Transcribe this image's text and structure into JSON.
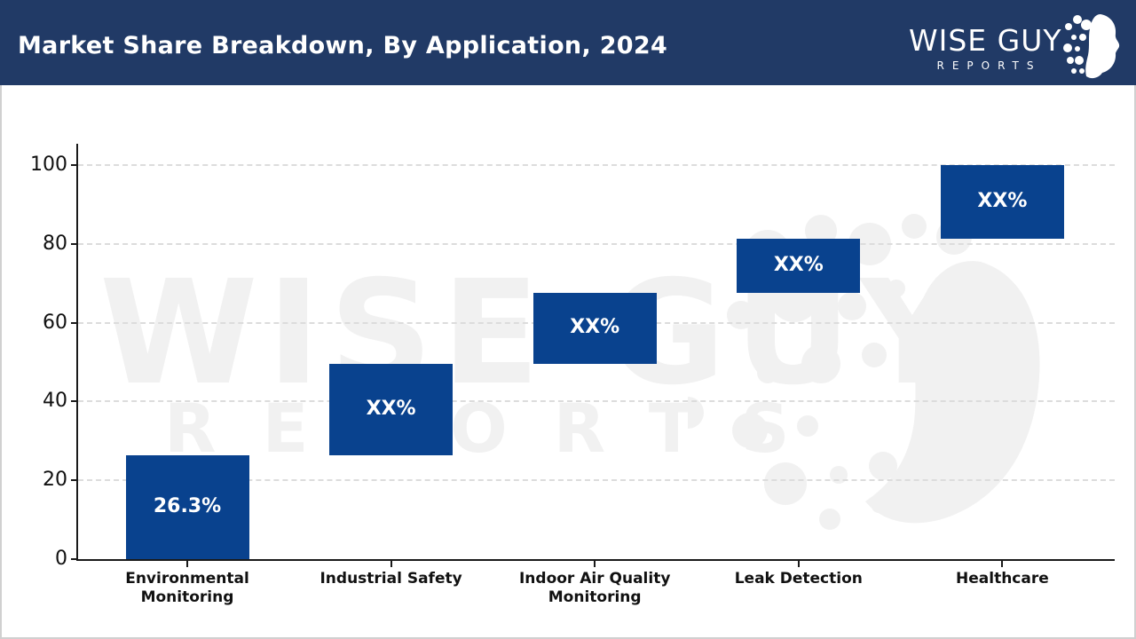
{
  "header": {
    "title": "Market Share Breakdown, By Application, 2024",
    "logo_line1": "WISE GUY",
    "logo_line2": "REPORTS",
    "bg_color": "#213a66"
  },
  "watermark": {
    "line1": "WISE GUY",
    "line2": "REPORTS"
  },
  "chart_data": {
    "type": "bar",
    "variant": "waterfall",
    "title": "Market Share Breakdown, By Application, 2024",
    "xlabel": "",
    "ylabel": "",
    "ylim": [
      0,
      100
    ],
    "yticks": [
      0,
      20,
      40,
      60,
      80,
      100
    ],
    "grid": "horizontal-dashed",
    "legend": "none",
    "bar_color": "#09428e",
    "bar_label_color": "#ffffff",
    "categories": [
      "Environmental Monitoring",
      "Industrial Safety",
      "Indoor Air Quality Monitoring",
      "Leak Detection",
      "Healthcare"
    ],
    "bars": [
      {
        "category": "Environmental Monitoring",
        "category_lines": [
          "Environmental",
          "Monitoring"
        ],
        "start": 0,
        "end": 26.3,
        "value": 26.3,
        "label": "26.3%"
      },
      {
        "category": "Industrial Safety",
        "category_lines": [
          "Industrial Safety"
        ],
        "start": 26.3,
        "end": 49.5,
        "value": 23.2,
        "label": "XX%"
      },
      {
        "category": "Indoor Air Quality Monitoring",
        "category_lines": [
          "Indoor Air Quality",
          "Monitoring"
        ],
        "start": 49.5,
        "end": 67.5,
        "value": 18.0,
        "label": "XX%"
      },
      {
        "category": "Leak Detection",
        "category_lines": [
          "Leak Detection"
        ],
        "start": 67.5,
        "end": 81.2,
        "value": 13.7,
        "label": "XX%"
      },
      {
        "category": "Healthcare",
        "category_lines": [
          "Healthcare"
        ],
        "start": 81.2,
        "end": 100,
        "value": 18.8,
        "label": "XX%"
      }
    ]
  }
}
